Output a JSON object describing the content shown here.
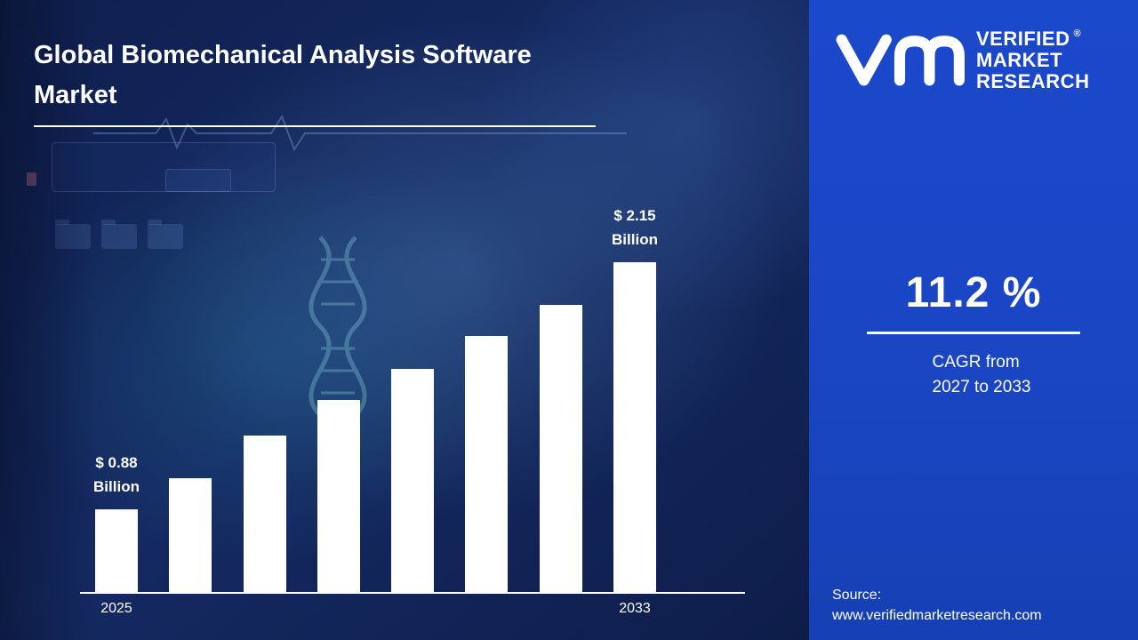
{
  "header": {
    "title": "Global Biomechanical Analysis Software Market"
  },
  "chart_data": {
    "type": "bar",
    "title": "Global Biomechanical Analysis Software Market",
    "x_axis_visible_labels": [
      "2025",
      "2033"
    ],
    "values_usd_billion": [
      0.88,
      1.04,
      1.26,
      1.44,
      1.6,
      1.77,
      1.93,
      2.15
    ],
    "annotations": {
      "first_bar": {
        "amount": "$ 0.88",
        "unit": "Billion"
      },
      "last_bar": {
        "amount": "$ 2.15",
        "unit": "Billion"
      }
    },
    "bar_color": "#ffffff",
    "axis_line_color": "#ffffff",
    "grid": false,
    "legend": false,
    "baseline_truncated": true
  },
  "sidebar": {
    "brand": {
      "lines": [
        "VERIFIED",
        "MARKET",
        "RESEARCH"
      ],
      "registered_mark": "®",
      "logo_icon": "vm-monogram-icon"
    },
    "cagr": {
      "value": "11.2 %",
      "caption_line1": "CAGR from",
      "caption_line2": "2027 to 2033"
    },
    "source": {
      "label": "Source:",
      "url": "www.verifiedmarketresearch.com"
    }
  },
  "colors": {
    "main_background": "#152a63",
    "sidebar_background": "#1a46c4",
    "bar": "#ffffff",
    "text": "#ffffff"
  }
}
